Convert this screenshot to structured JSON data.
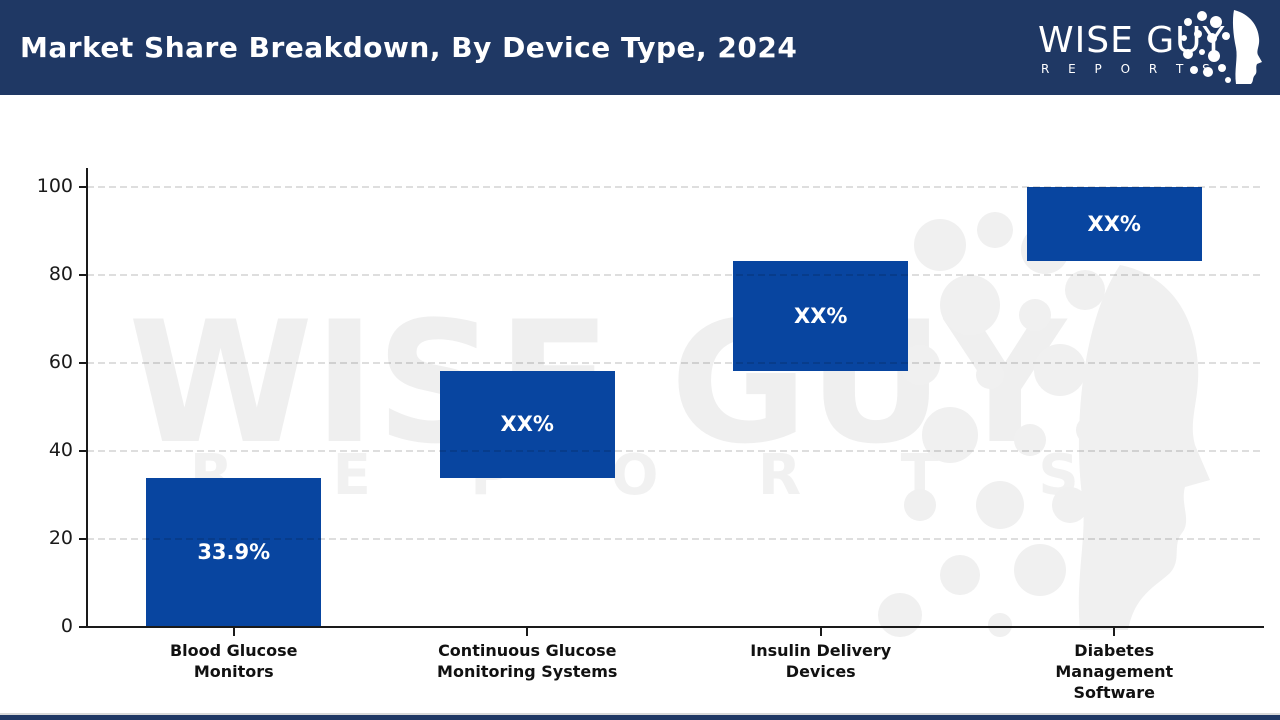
{
  "header": {
    "title": "Market Share Breakdown, By Device Type, 2024",
    "bg_color": "#1f3864",
    "logo": {
      "line1": "WISE GUY",
      "line2": "R E P O R T S"
    }
  },
  "watermark": {
    "line1": "WISE GUY",
    "line2": "R E P O R T S"
  },
  "chart_data": {
    "type": "bar",
    "variant": "waterfall",
    "title": "Market Share Breakdown, By Device Type, 2024",
    "categories": [
      "Blood Glucose\nMonitors",
      "Continuous Glucose\nMonitoring Systems",
      "Insulin Delivery\nDevices",
      "Diabetes\nManagement\nSoftware"
    ],
    "bars": [
      {
        "category": "Blood Glucose Monitors",
        "label": "33.9%",
        "start": 0,
        "end": 33.9,
        "value": 33.9
      },
      {
        "category": "Continuous Glucose Monitoring Systems",
        "label": "XX%",
        "start": 33.9,
        "end": 58.2,
        "value": 24.3
      },
      {
        "category": "Insulin Delivery Devices",
        "label": "XX%",
        "start": 58.2,
        "end": 83.2,
        "value": 25.0
      },
      {
        "category": "Diabetes Management Software",
        "label": "XX%",
        "start": 83.2,
        "end": 100,
        "value": 16.8
      }
    ],
    "xlabel": "",
    "ylabel": "",
    "ylim": [
      0,
      100
    ],
    "yticks": [
      0,
      20,
      40,
      60,
      80,
      100
    ],
    "grid": "horizontal-dashed",
    "legend": "none",
    "bar_color": "#0845a0"
  }
}
